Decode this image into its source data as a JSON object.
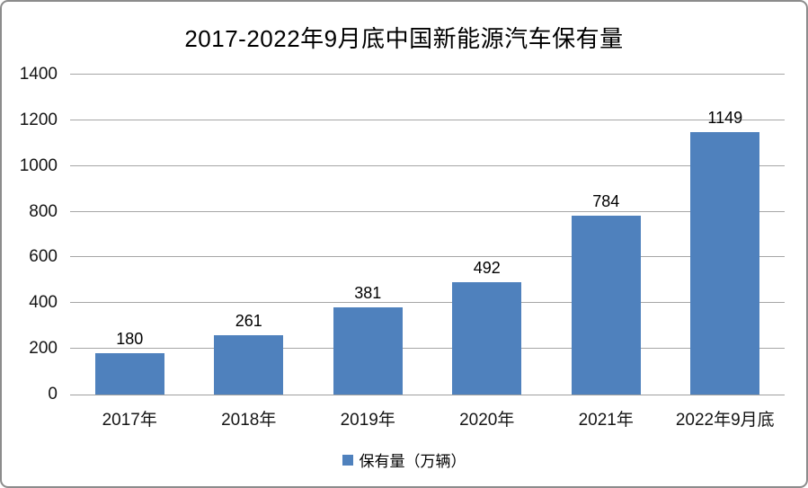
{
  "chart_data": {
    "type": "bar",
    "title": "2017-2022年9月底中国新能源汽车保有量",
    "categories": [
      "2017年",
      "2018年",
      "2019年",
      "2020年",
      "2021年",
      "2022年9月底"
    ],
    "values": [
      180,
      261,
      381,
      492,
      784,
      1149
    ],
    "series_name": "保有量（万辆）",
    "xlabel": "",
    "ylabel": "",
    "ylim": [
      0,
      1400
    ],
    "yticks": [
      0,
      200,
      400,
      600,
      800,
      1000,
      1200,
      1400
    ],
    "grid": true,
    "legend_position": "bottom",
    "bar_color": "#4F81BD",
    "gridline_color": "#A6A6A6",
    "axis_line_color": "#A0A0A0",
    "frame_border_color": "#8C8C8C"
  }
}
